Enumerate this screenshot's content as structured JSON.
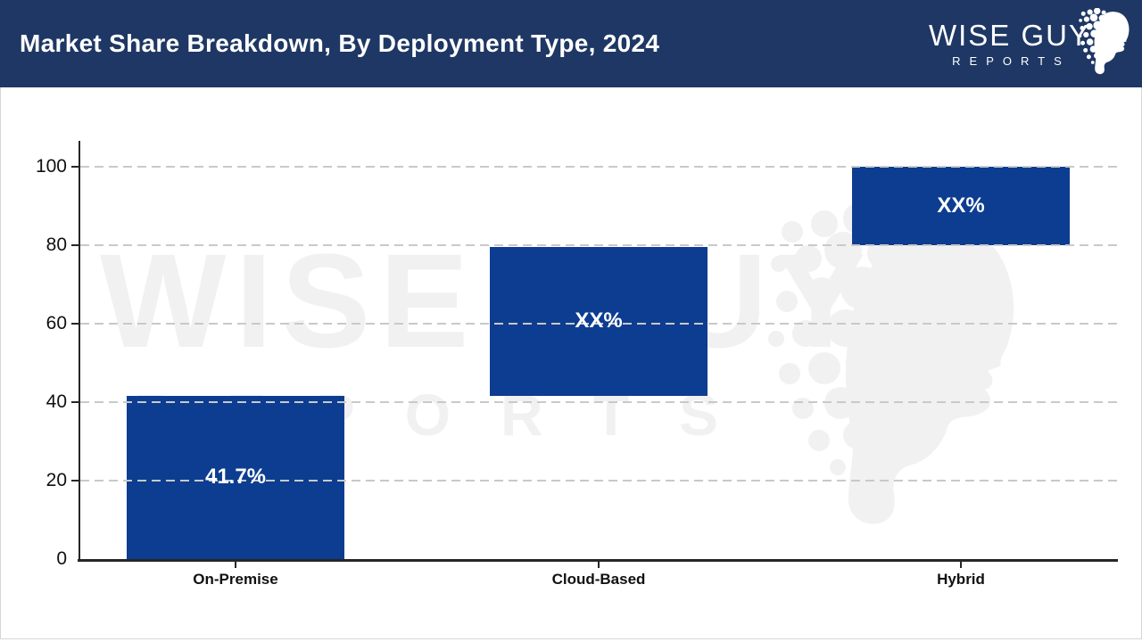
{
  "header": {
    "title": "Market Share Breakdown, By Deployment Type, 2024",
    "logo": {
      "wordmark": "WISE GUY",
      "subtext": "REPORTS"
    }
  },
  "watermark": {
    "wordmark": "WISE GUY",
    "subtext": "REPORTS"
  },
  "colors": {
    "header_bg": "#1e3764",
    "bar": "#0d3d91",
    "grid": "#c9c9c9",
    "axis": "#262626",
    "bar_label": "#ffffff",
    "watermark": "#f1f1f2"
  },
  "chart_data": {
    "type": "bar",
    "variant": "floating-waterfall",
    "title": "Market Share Breakdown, By Deployment Type, 2024",
    "categories": [
      "On-Premise",
      "Cloud-Based",
      "Hybrid"
    ],
    "segments": [
      {
        "category": "On-Premise",
        "start": 0,
        "end": 41.7,
        "label": "41.7%"
      },
      {
        "category": "Cloud-Based",
        "start": 41.7,
        "end": 79.5,
        "label": "XX%"
      },
      {
        "category": "Hybrid",
        "start": 80,
        "end": 100,
        "label": "XX%"
      }
    ],
    "xlabel": "",
    "ylabel": "",
    "ylim": [
      0,
      100
    ],
    "yticks": [
      0,
      20,
      40,
      60,
      80,
      100
    ],
    "grid": "horizontal-dashed",
    "legend": "none"
  }
}
